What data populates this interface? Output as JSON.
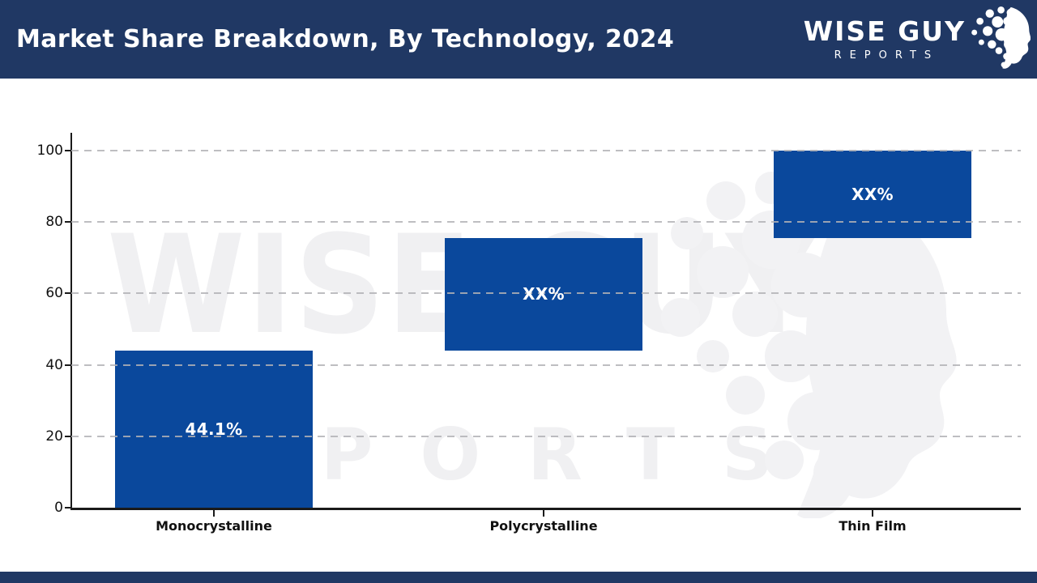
{
  "header": {
    "title": "Market Share Breakdown, By Technology, 2024",
    "logo": {
      "line1": "WISE GUY",
      "line2": "REPORTS"
    }
  },
  "watermark": {
    "line1": "WISE GUY",
    "line2": "REPORTS"
  },
  "colors": {
    "header_navy": "#203864",
    "bar_blue": "#0a489c",
    "grid_gray": "#b2b2b6",
    "axis_black": "#1a1a1a",
    "watermark_gray": "#f0f0f2",
    "label_white": "#ffffff"
  },
  "chart_data": {
    "type": "bar",
    "subtype": "waterfall",
    "title": "Market Share Breakdown, By Technology, 2024",
    "categories": [
      "Monocrystalline",
      "Polycrystalline",
      "Thin Film"
    ],
    "segments": [
      {
        "category": "Monocrystalline",
        "start": 0,
        "end": 44.1,
        "size": 44.1,
        "label": "44.1%"
      },
      {
        "category": "Polycrystalline",
        "start": 44.1,
        "end": 75.6,
        "size": 31.5,
        "label": "XX%"
      },
      {
        "category": "Thin Film",
        "start": 75.6,
        "end": 100,
        "size": 24.4,
        "label": "XX%"
      }
    ],
    "values": [
      44.1,
      31.5,
      24.4
    ],
    "bases": [
      0,
      44.1,
      75.6
    ],
    "yticks": [
      0,
      20,
      40,
      60,
      80,
      100
    ],
    "ytick_labels": [
      "0",
      "20",
      "40",
      "60",
      "80",
      "100"
    ],
    "ylim": [
      0,
      100
    ],
    "xlabel": "",
    "ylabel": "",
    "grid": "dashed-horizontal-over-bars",
    "legend": "none",
    "bar_color": "#0a489c",
    "bar_label_color": "#ffffff"
  }
}
